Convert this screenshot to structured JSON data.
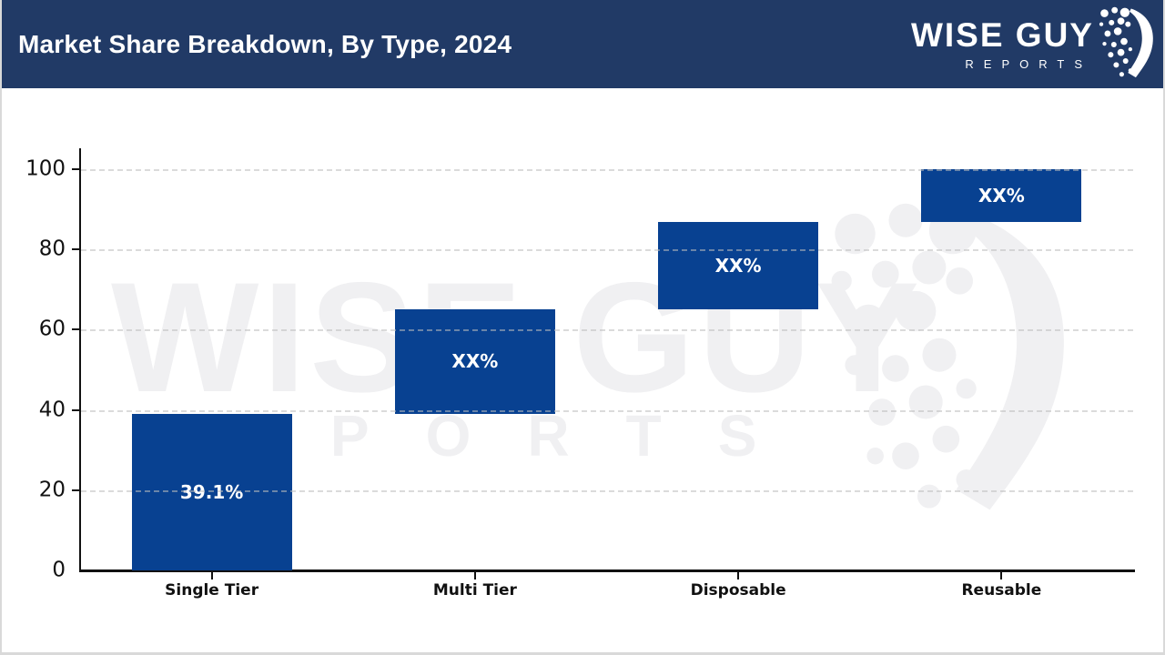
{
  "header": {
    "title": "Market Share Breakdown, By Type, 2024",
    "bg_color": "#213a66",
    "logo": {
      "line1": "WISE GUY",
      "line2": "REPORTS"
    }
  },
  "watermark": {
    "line1": "WISE GUY",
    "line2": "REPORTS"
  },
  "colors": {
    "bar": "#084191",
    "header_navy": "#213a66",
    "grid": "#c9c9c9",
    "axis": "#111111",
    "watermark": "#f0f0f2",
    "bar_label": "#ffffff"
  },
  "chart_data": {
    "type": "bar",
    "subtype": "floating-waterfall",
    "title": "Market Share Breakdown, By Type, 2024",
    "categories": [
      "Single Tier",
      "Multi Tier",
      "Disposable",
      "Reusable"
    ],
    "segments": [
      {
        "category": "Single Tier",
        "start": 0,
        "end": 39.1,
        "label": "39.1%"
      },
      {
        "category": "Multi Tier",
        "start": 39.1,
        "end": 65,
        "label": "XX%"
      },
      {
        "category": "Disposable",
        "start": 65,
        "end": 86.9,
        "label": "XX%"
      },
      {
        "category": "Reusable",
        "start": 86.9,
        "end": 100,
        "label": "XX%"
      }
    ],
    "xlabel": "",
    "ylabel": "",
    "ylim": [
      0,
      100
    ],
    "yticks": [
      0,
      20,
      40,
      60,
      80,
      100
    ],
    "grid": "horizontal-dashed",
    "legend": "none",
    "bar_color": "#084191",
    "label_color": "#ffffff"
  }
}
